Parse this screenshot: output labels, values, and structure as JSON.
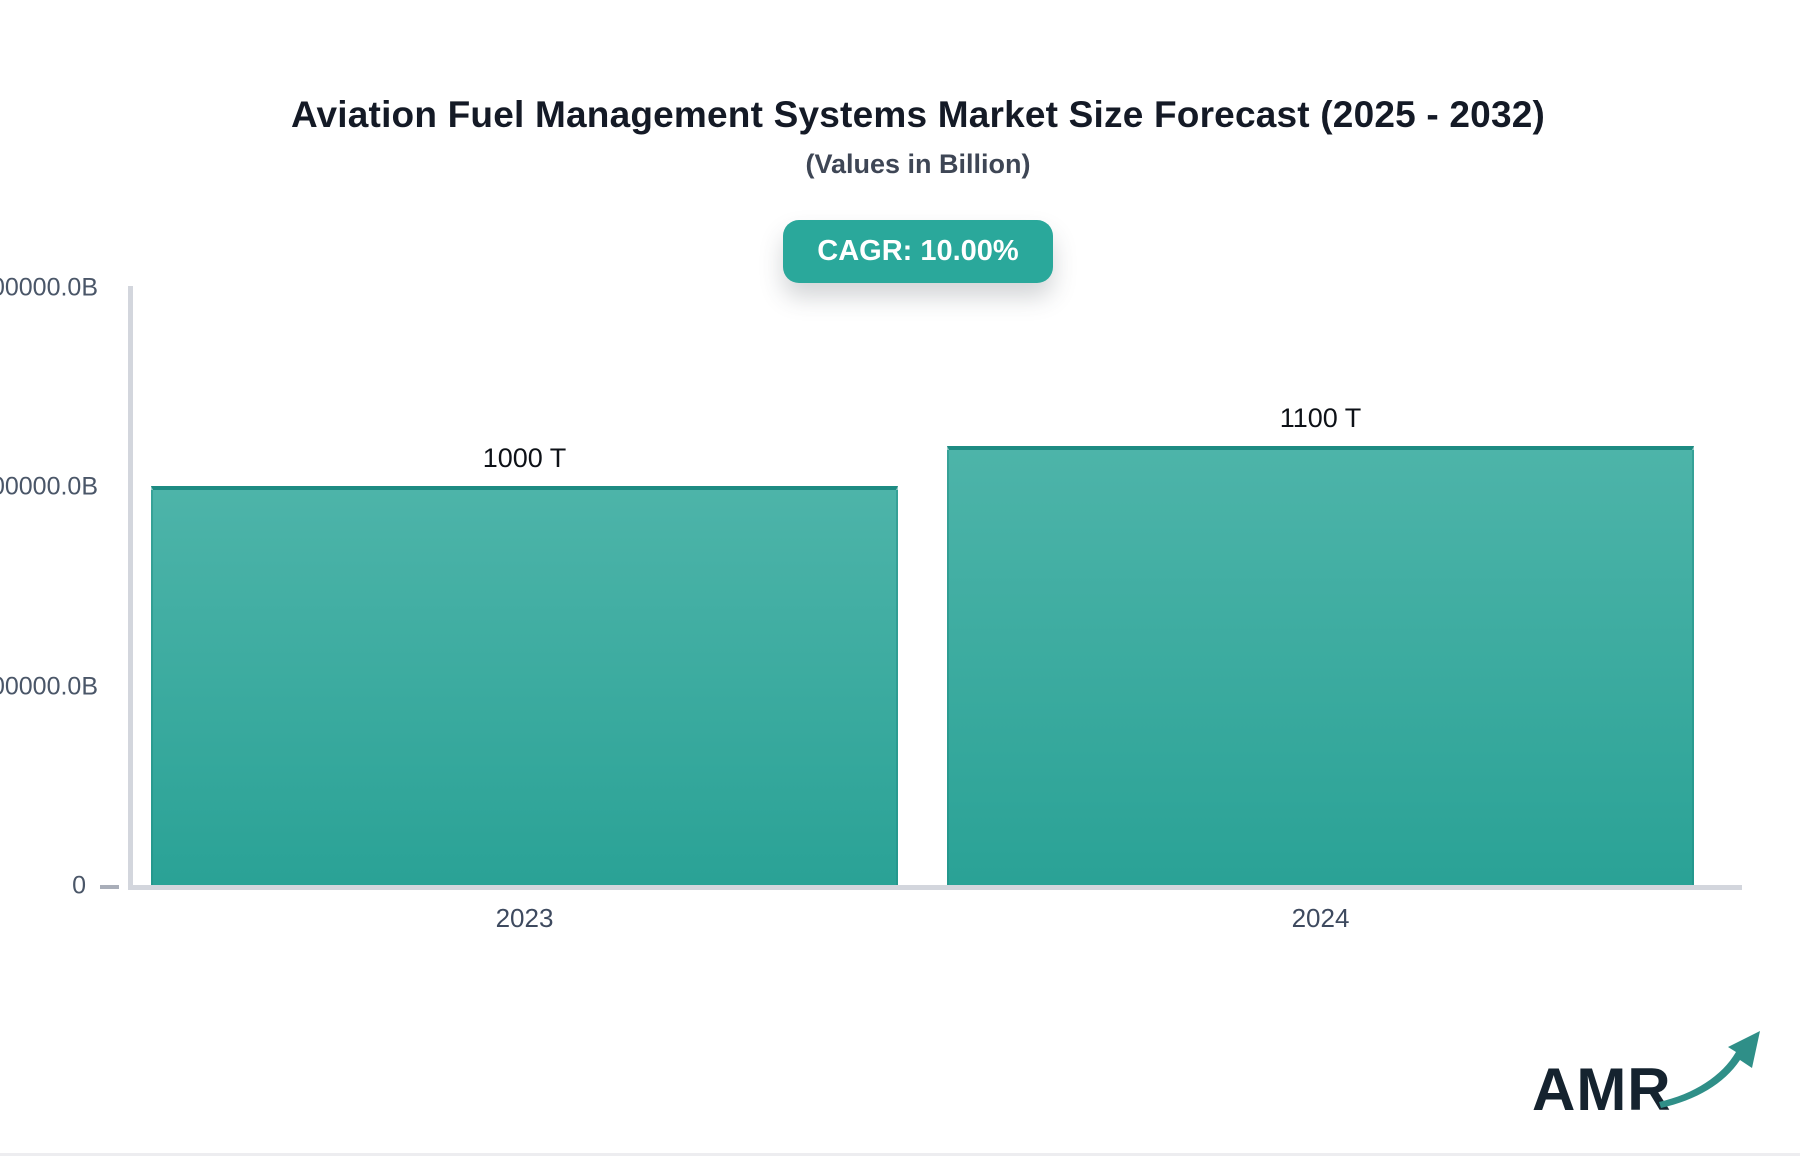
{
  "header": {
    "title": "Aviation Fuel Management Systems Market Size Forecast (2025 - 2032)",
    "subtitle": "(Values in Billion)",
    "cagr_badge": "CAGR: 10.00%"
  },
  "chart_data": {
    "type": "bar",
    "title": "Aviation Fuel Management Systems Market Size Forecast (2025 - 2032)",
    "subtitle": "(Values in Billion)",
    "cagr_percent": "10.00%",
    "categories": [
      "2023",
      "2024"
    ],
    "values": [
      1000,
      1100
    ],
    "value_labels": [
      "1000 T",
      "1100 T"
    ],
    "value_unit": "T",
    "ylim": [
      0,
      1500
    ],
    "y_tick_labels_visible": [
      "00000.0B",
      "00000.0B",
      "00000.0B",
      "0"
    ],
    "grid": false,
    "legend": false,
    "colors": {
      "bar_gradient_top": "#4db4a9",
      "bar_gradient_bottom": "#2aa296",
      "bar_border": "#1d8b82",
      "badge_background": "#2aa89b",
      "axis_line": "#d3d6dd",
      "tick_label": "#4a5668",
      "category_label": "#3e4a5f"
    }
  },
  "logo": {
    "text": "AMR"
  }
}
